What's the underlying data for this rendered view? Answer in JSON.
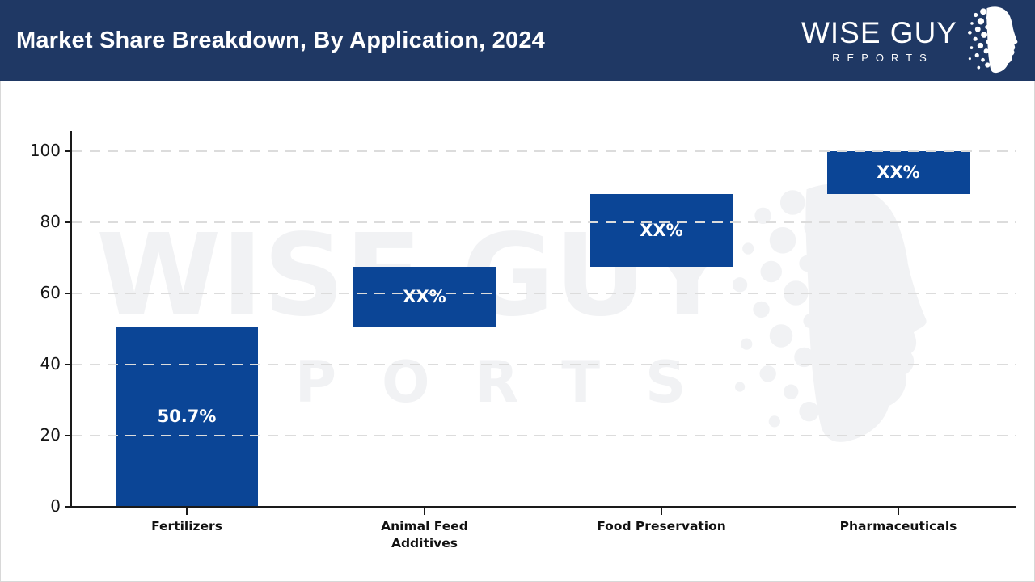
{
  "header": {
    "title": "Market Share Breakdown, By Application, 2024",
    "logo": {
      "line1": "WISE GUY",
      "line2": "REPORTS"
    }
  },
  "watermark": {
    "line1": "WISE GUY",
    "line2": "REPORTS"
  },
  "colors": {
    "header_bg": "#1f3864",
    "bar": "#0b4596",
    "watermark": "#f1f2f4",
    "grid": "#dcdcdc",
    "axis": "#1a1a1a"
  },
  "chart_data": {
    "type": "bar",
    "subtype": "waterfall",
    "title": "Market Share Breakdown, By Application, 2024",
    "categories": [
      "Fertilizers",
      "Animal Feed\nAdditives",
      "Food Preservation",
      "Pharmaceuticals"
    ],
    "segments": [
      {
        "category": "Fertilizers",
        "start": 0,
        "end": 50.7,
        "label": "50.7%"
      },
      {
        "category": "Animal Feed Additives",
        "start": 50.7,
        "end": 67.5,
        "label": "XX%"
      },
      {
        "category": "Food Preservation",
        "start": 67.5,
        "end": 88,
        "label": "XX%"
      },
      {
        "category": "Pharmaceuticals",
        "start": 88,
        "end": 100,
        "label": "XX%"
      }
    ],
    "ylim": [
      0,
      105
    ],
    "yticks": [
      0,
      20,
      40,
      60,
      80,
      100
    ],
    "xlabel": "",
    "ylabel": "",
    "grid": "dashed-horizontal",
    "legend": "none",
    "bar_color": "#0b4596",
    "bar_label_color": "#ffffff"
  }
}
